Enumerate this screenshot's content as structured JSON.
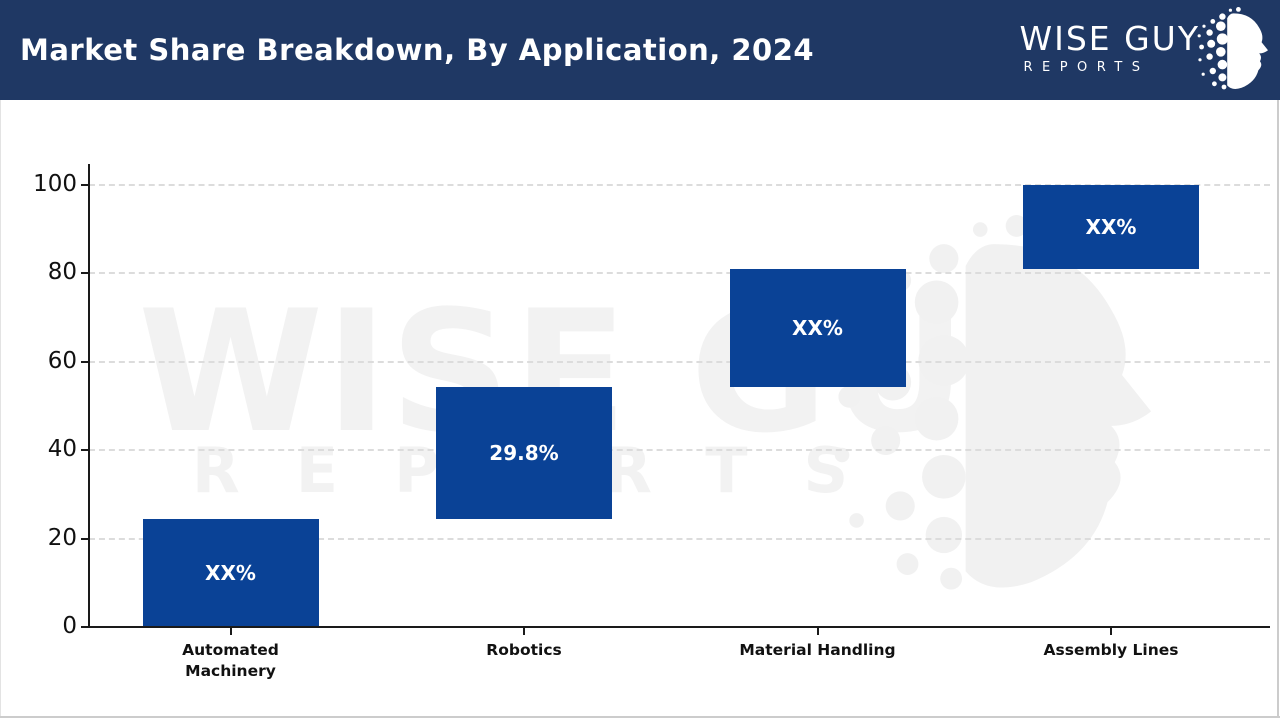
{
  "header": {
    "title": "Market Share Breakdown, By Application, 2024",
    "bg_color": "#1f3864",
    "logo": {
      "line1": "WISE GUY",
      "line2": "REPORTS"
    }
  },
  "watermark": {
    "line1": "WISE GUY",
    "line2": "REPORTS"
  },
  "chart_data": {
    "type": "bar",
    "subtype": "waterfall",
    "title": "Market Share Breakdown, By Application, 2024",
    "xlabel": "",
    "ylabel": "",
    "ylim": [
      0,
      105
    ],
    "yticks": [
      0,
      20,
      40,
      60,
      80,
      100
    ],
    "grid": "horizontal-dashed",
    "legend": "none",
    "bar_color": "#0a4296",
    "bar_label_color": "#ffffff",
    "categories": [
      "Automated Machinery",
      "Robotics",
      "Material Handling",
      "Assembly Lines"
    ],
    "tick_labels": [
      "Automated\nMachinery",
      "Robotics",
      "Material Handling",
      "Assembly Lines"
    ],
    "series": [
      {
        "name": "Market Share",
        "segments": [
          {
            "category": "Automated Machinery",
            "start": 0,
            "end": 24.4,
            "value": 24.4,
            "label": "XX%"
          },
          {
            "category": "Robotics",
            "start": 24.4,
            "end": 54.2,
            "value": 29.8,
            "label": "29.8%"
          },
          {
            "category": "Material Handling",
            "start": 54.2,
            "end": 81.0,
            "value": 26.8,
            "label": "XX%"
          },
          {
            "category": "Assembly Lines",
            "start": 81.0,
            "end": 100,
            "value": 19.0,
            "label": "XX%"
          }
        ]
      }
    ]
  }
}
